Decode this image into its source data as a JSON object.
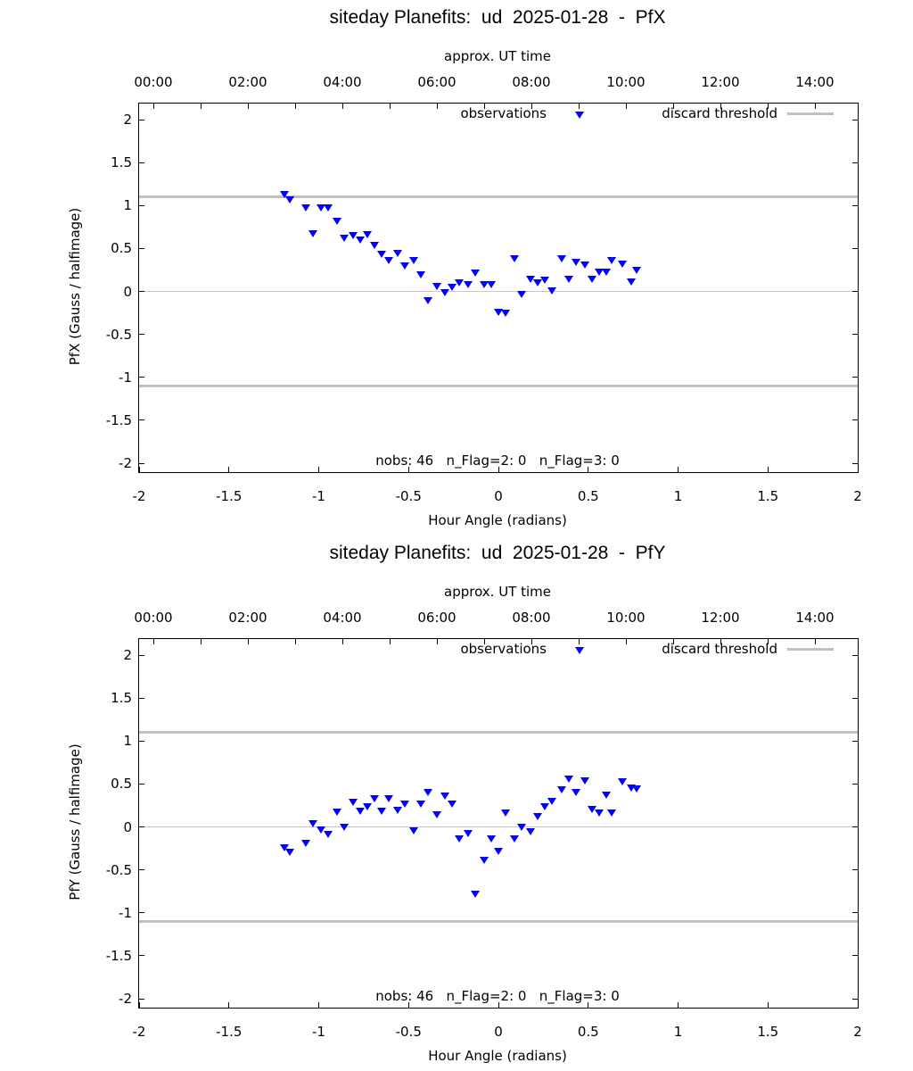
{
  "colors": {
    "marker_blue": "#0000ff",
    "threshold_gray": "#c0c0c0",
    "zero_line_gray": "#c8c8c8",
    "axis_black": "#000000",
    "background": "#ffffff"
  },
  "charts": [
    {
      "title": "siteday Planefits:  ud  2025-01-28  -  PfX",
      "x2_axis": {
        "label": "approx. UT time",
        "ticks": [
          "00:00",
          "02:00",
          "04:00",
          "06:00",
          "08:00",
          "10:00",
          "12:00",
          "14:00"
        ]
      },
      "y_axis": {
        "label": "PfX (Gauss / halfimage)",
        "ticks": [
          "2",
          "1.5",
          "1",
          "0.5",
          "0",
          "-0.5",
          "-1",
          "-1.5",
          "-2"
        ]
      },
      "x_axis": {
        "label": "Hour Angle (radians)",
        "ticks": [
          "-2",
          "-1.5",
          "-1",
          "-0.5",
          "0",
          "0.5",
          "1",
          "1.5",
          "2"
        ]
      },
      "legend": [
        {
          "label": "observations",
          "symbol": "blue-triangle-down-marker"
        },
        {
          "label": "discard threshold",
          "symbol": "gray-line"
        }
      ],
      "annotation": "nobs: 46   n_Flag=2: 0   n_Flag=3: 0"
    },
    {
      "title": "siteday Planefits:  ud  2025-01-28  -  PfY",
      "x2_axis": {
        "label": "approx. UT time",
        "ticks": [
          "00:00",
          "02:00",
          "04:00",
          "06:00",
          "08:00",
          "10:00",
          "12:00",
          "14:00"
        ]
      },
      "y_axis": {
        "label": "PfY (Gauss / halfimage)",
        "ticks": [
          "2",
          "1.5",
          "1",
          "0.5",
          "0",
          "-0.5",
          "-1",
          "-1.5",
          "-2"
        ]
      },
      "x_axis": {
        "label": "Hour Angle (radians)",
        "ticks": [
          "-2",
          "-1.5",
          "-1",
          "-0.5",
          "0",
          "0.5",
          "1",
          "1.5",
          "2"
        ]
      },
      "legend": [
        {
          "label": "observations",
          "symbol": "blue-triangle-down-marker"
        },
        {
          "label": "discard threshold",
          "symbol": "gray-line"
        }
      ],
      "annotation": "nobs: 46   n_Flag=2: 0   n_Flag=3: 0"
    }
  ],
  "chart_data": [
    {
      "type": "scatter",
      "title": "siteday Planefits:  ud  2025-01-28  -  PfX",
      "xlabel": "Hour Angle (radians)",
      "ylabel": "PfX (Gauss / halfimage)",
      "x2label": "approx. UT time",
      "xlim": [
        -2,
        2
      ],
      "ylim": [
        -2.1,
        2.2
      ],
      "x2_tick_hours": [
        0,
        2,
        4,
        6,
        8,
        10,
        12,
        14
      ],
      "grid": false,
      "legend_position": "top-inside",
      "nobs": 46,
      "n_flag_2": 0,
      "n_flag_3": 0,
      "thresholds": {
        "name": "discard threshold",
        "color": "#c0c0c0",
        "values": [
          1.1,
          -1.1
        ]
      },
      "zero_line": 0,
      "series": [
        {
          "name": "observations",
          "marker": "triangle-down",
          "color": "#0000ff",
          "x": [
            -1.19,
            -1.16,
            -1.07,
            -1.03,
            -0.99,
            -0.95,
            -0.9,
            -0.86,
            -0.81,
            -0.77,
            -0.73,
            -0.69,
            -0.65,
            -0.61,
            -0.56,
            -0.52,
            -0.47,
            -0.43,
            -0.39,
            -0.34,
            -0.3,
            -0.26,
            -0.22,
            -0.17,
            -0.13,
            -0.08,
            -0.04,
            0.0,
            0.04,
            0.09,
            0.13,
            0.18,
            0.22,
            0.26,
            0.3,
            0.35,
            0.39,
            0.43,
            0.48,
            0.52,
            0.56,
            0.6,
            0.63,
            0.69,
            0.74,
            0.77
          ],
          "y": [
            1.13,
            1.07,
            0.97,
            0.67,
            0.97,
            0.97,
            0.82,
            0.62,
            0.65,
            0.6,
            0.66,
            0.53,
            0.43,
            0.36,
            0.44,
            0.3,
            0.36,
            0.19,
            -0.11,
            0.06,
            -0.02,
            0.05,
            0.1,
            0.08,
            0.21,
            0.08,
            0.08,
            -0.24,
            -0.25,
            0.38,
            -0.04,
            0.14,
            0.1,
            0.13,
            0.01,
            0.38,
            0.14,
            0.34,
            0.31,
            0.14,
            0.22,
            0.22,
            0.36,
            0.32,
            0.11,
            0.24
          ]
        }
      ]
    },
    {
      "type": "scatter",
      "title": "siteday Planefits:  ud  2025-01-28  -  PfY",
      "xlabel": "Hour Angle (radians)",
      "ylabel": "PfY (Gauss / halfimage)",
      "x2label": "approx. UT time",
      "xlim": [
        -2,
        2
      ],
      "ylim": [
        -2.1,
        2.2
      ],
      "x2_tick_hours": [
        0,
        2,
        4,
        6,
        8,
        10,
        12,
        14
      ],
      "grid": false,
      "legend_position": "top-inside",
      "nobs": 46,
      "n_flag_2": 0,
      "n_flag_3": 0,
      "thresholds": {
        "name": "discard threshold",
        "color": "#c0c0c0",
        "values": [
          1.1,
          -1.1
        ]
      },
      "zero_line": 0,
      "series": [
        {
          "name": "observations",
          "marker": "triangle-down",
          "color": "#0000ff",
          "x": [
            -1.19,
            -1.16,
            -1.07,
            -1.03,
            -0.99,
            -0.95,
            -0.9,
            -0.86,
            -0.81,
            -0.77,
            -0.73,
            -0.69,
            -0.65,
            -0.61,
            -0.56,
            -0.52,
            -0.47,
            -0.43,
            -0.39,
            -0.34,
            -0.3,
            -0.26,
            -0.22,
            -0.17,
            -0.13,
            -0.08,
            -0.04,
            0.0,
            0.04,
            0.09,
            0.13,
            0.18,
            0.22,
            0.26,
            0.3,
            0.35,
            0.39,
            0.43,
            0.48,
            0.52,
            0.56,
            0.6,
            0.63,
            0.69,
            0.74,
            0.77
          ],
          "y": [
            -0.24,
            -0.3,
            -0.19,
            0.04,
            -0.04,
            -0.09,
            0.17,
            -0.01,
            0.29,
            0.18,
            0.23,
            0.33,
            0.18,
            0.33,
            0.19,
            0.27,
            -0.05,
            0.27,
            0.4,
            0.14,
            0.36,
            0.26,
            -0.14,
            -0.08,
            -0.78,
            -0.39,
            -0.14,
            -0.29,
            0.16,
            -0.14,
            0.0,
            -0.06,
            0.12,
            0.23,
            0.3,
            0.43,
            0.56,
            0.4,
            0.53,
            0.2,
            0.16,
            0.37,
            0.16,
            0.52,
            0.45,
            0.44
          ]
        }
      ]
    }
  ]
}
